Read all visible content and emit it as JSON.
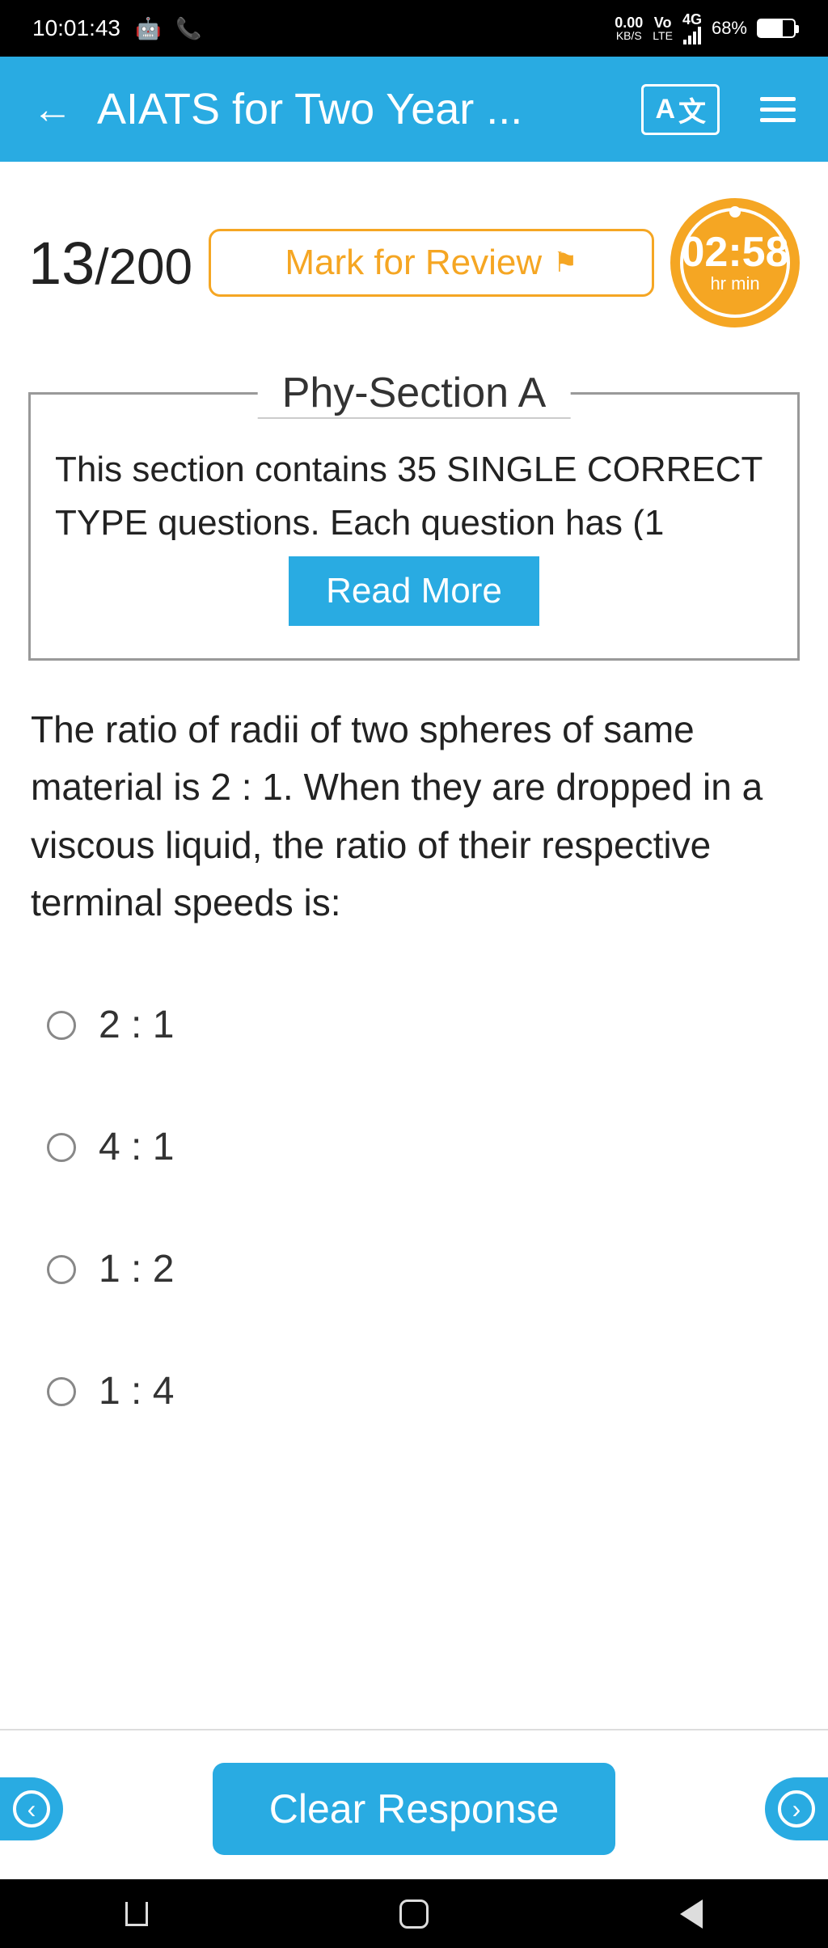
{
  "status": {
    "time": "10:01:43",
    "data_rate_top": "0.00",
    "data_rate_bot": "KB/S",
    "volte_top": "Vo",
    "volte_bot": "LTE",
    "net_top": "4G",
    "battery_pct": "68%"
  },
  "header": {
    "title": "AIATS for Two Year ...",
    "translate": "A"
  },
  "qheader": {
    "current": "13",
    "total": "/200",
    "mark_label": "Mark for Review",
    "timer_time": "02:58",
    "timer_unit": "hr  min"
  },
  "section": {
    "title": "Phy-Section A",
    "desc": "This section contains 35 SINGLE CORRECT TYPE questions. Each question has (1",
    "read_more": "Read More"
  },
  "question": "The ratio of radii of two spheres of same material is 2 : 1. When they are dropped in a viscous liquid, the ratio of their respective terminal speeds is:",
  "options": [
    "2 : 1",
    "4 : 1",
    "1 : 2",
    "1 : 4"
  ],
  "bottom": {
    "clear": "Clear Response"
  },
  "colors": {
    "primary": "#29abe2",
    "accent": "#f5a623"
  }
}
